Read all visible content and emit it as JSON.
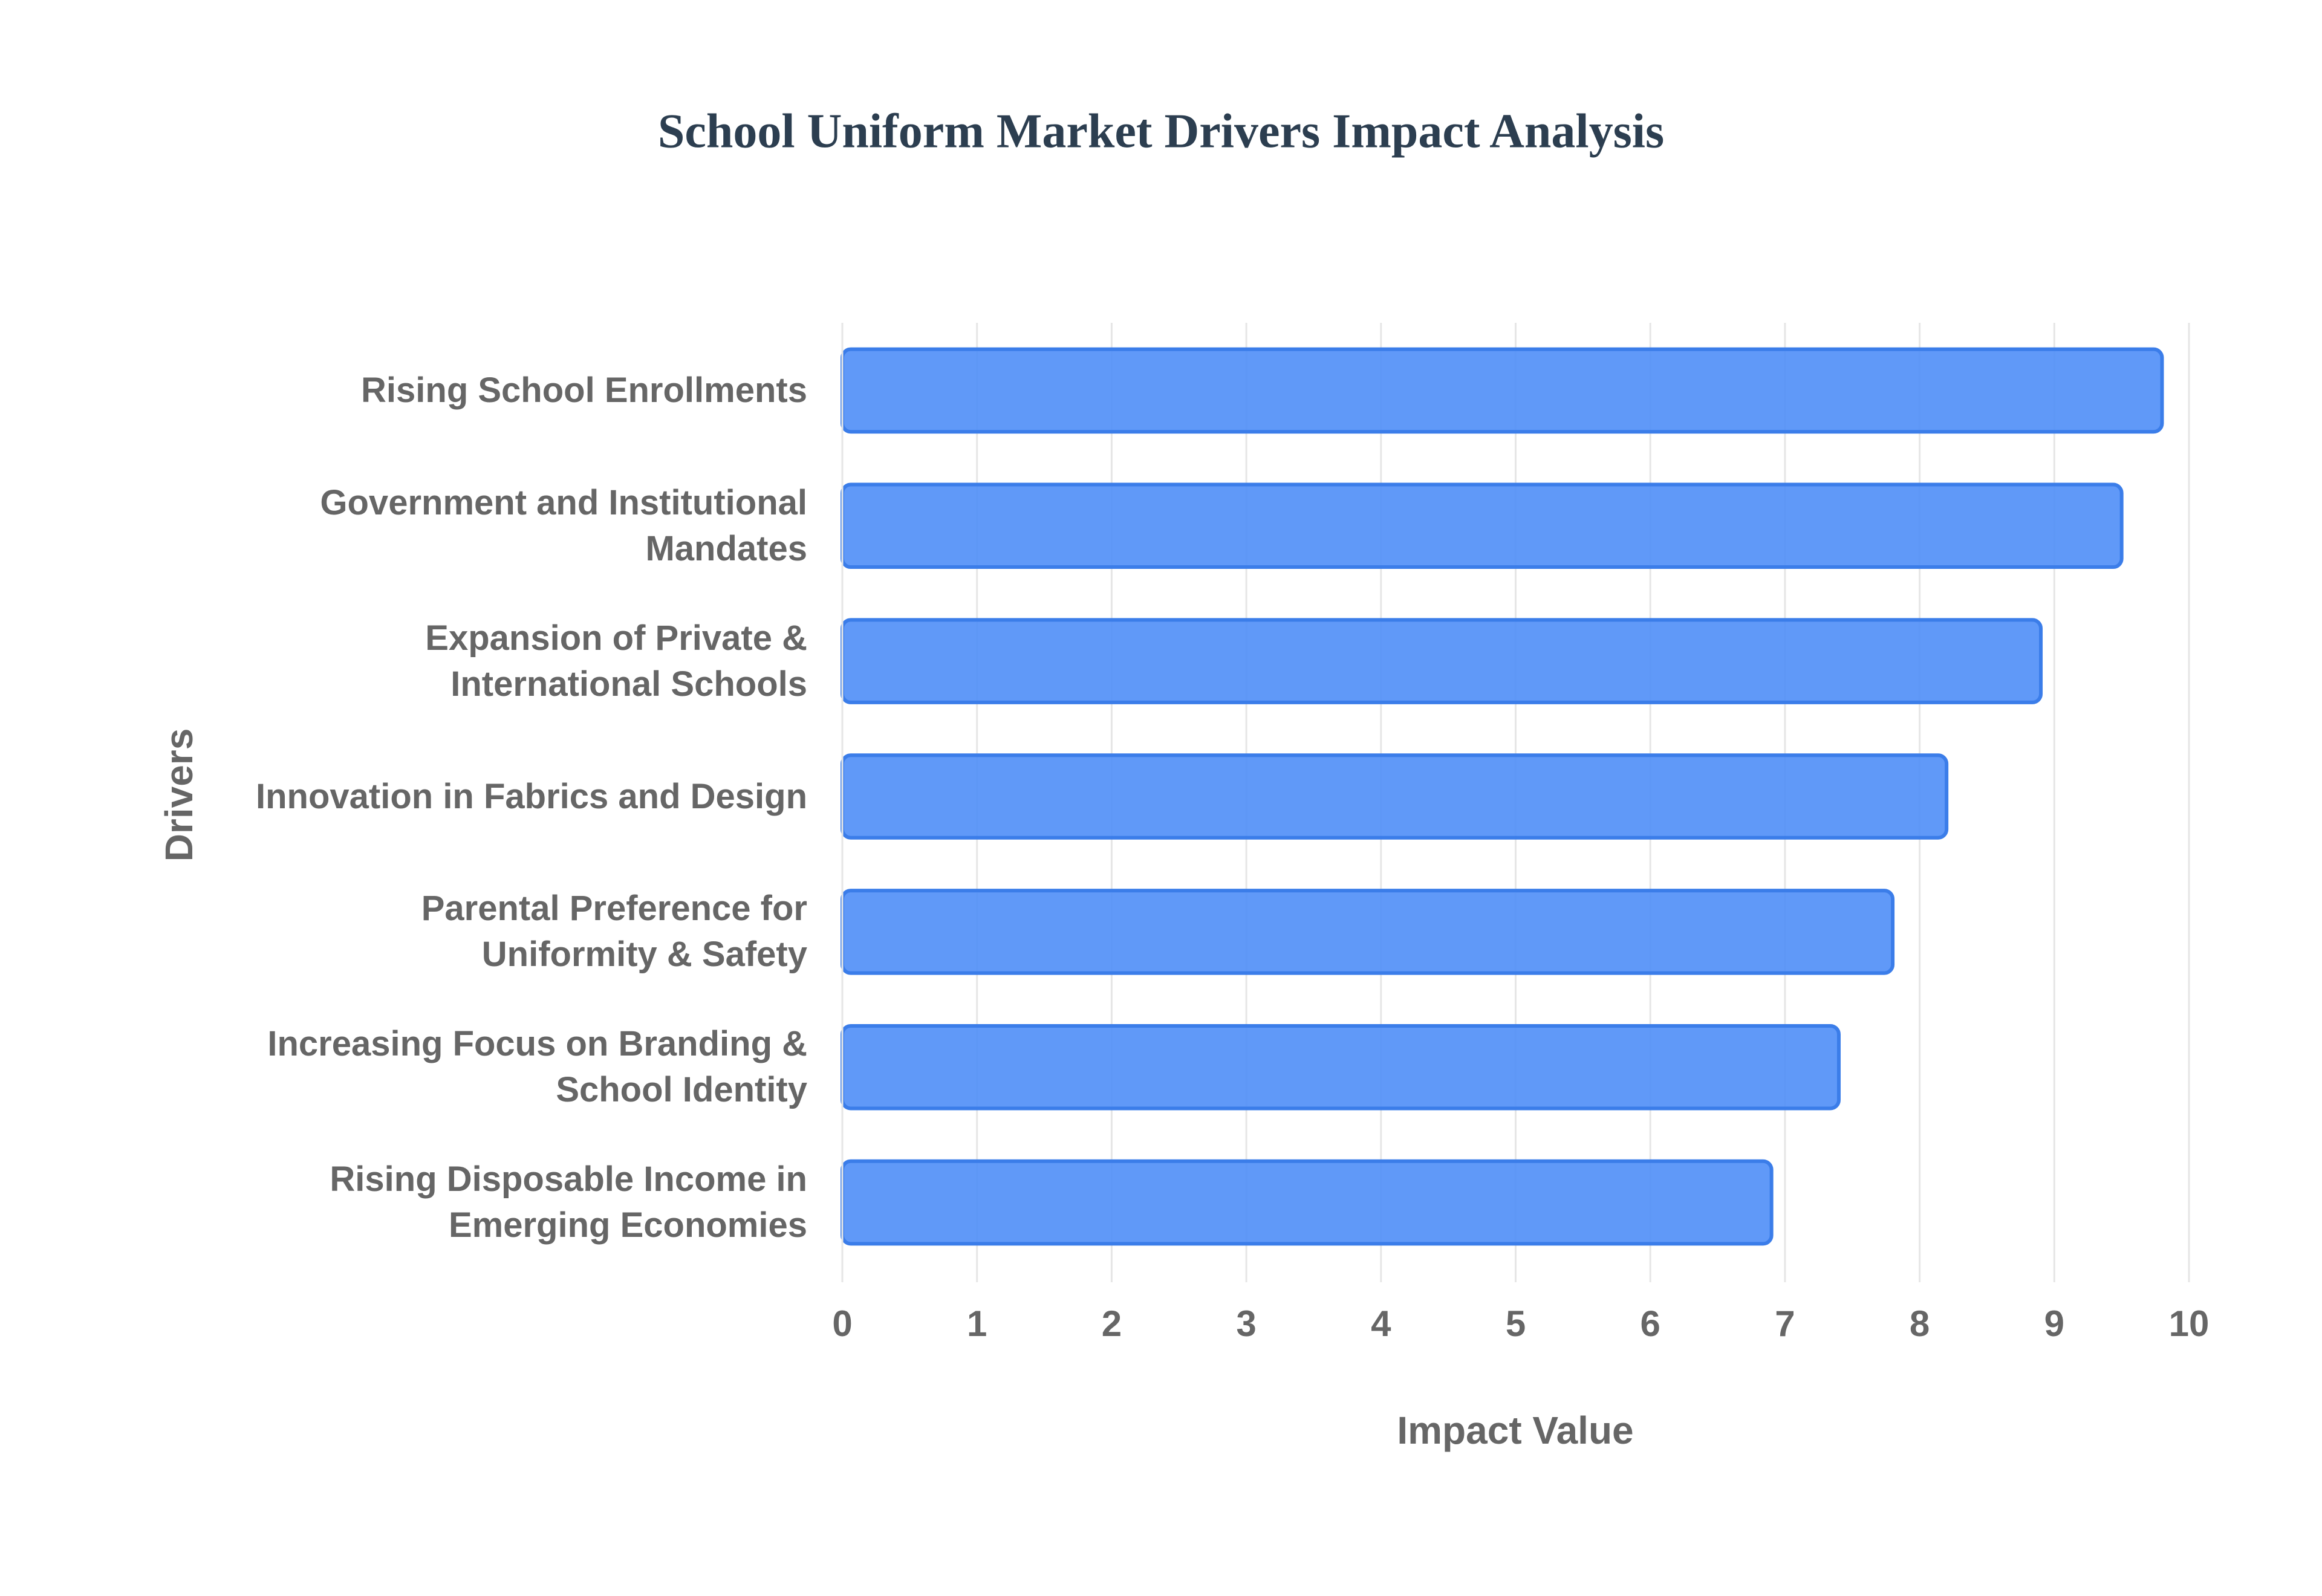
{
  "chart_data": {
    "type": "bar",
    "orientation": "horizontal",
    "title": "School Uniform Market Drivers Impact Analysis",
    "x_label": "Impact Value",
    "y_label": "Drivers",
    "categories": [
      "Rising School Enrollments",
      "Government and Institutional Mandates",
      "Expansion of Private & International Schools",
      "Innovation in Fabrics and Design",
      "Parental Preference for Uniformity & Safety",
      "Increasing Focus on Branding & School Identity",
      "Rising Disposable Income in Emerging Economies"
    ],
    "values": [
      9.8,
      9.5,
      8.9,
      8.2,
      7.8,
      7.4,
      6.9
    ],
    "color": "#4f8ef7",
    "xlim": [
      0,
      10
    ],
    "xticks": [
      0,
      1,
      2,
      3,
      4,
      5,
      6,
      7,
      8,
      9,
      10
    ],
    "grid": true
  }
}
